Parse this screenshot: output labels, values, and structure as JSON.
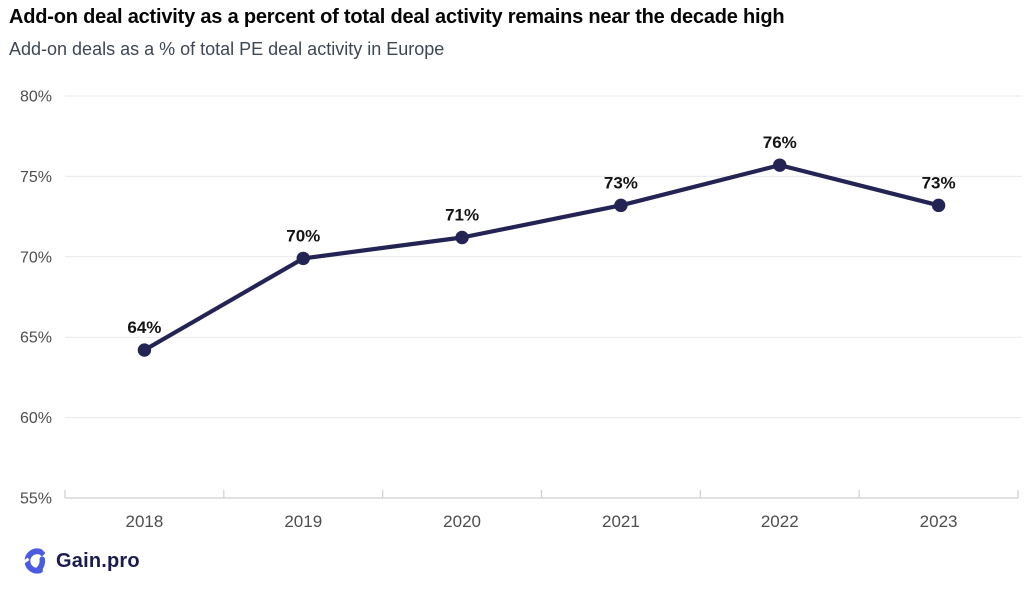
{
  "chart_data": {
    "type": "line",
    "title": "Add-on deal activity as a percent of total deal activity remains near the decade high",
    "subtitle": "Add-on deals as a % of total PE deal activity in Europe",
    "categories": [
      "2018",
      "2019",
      "2020",
      "2021",
      "2022",
      "2023"
    ],
    "values": [
      64.2,
      69.9,
      71.2,
      73.2,
      75.7,
      73.2
    ],
    "point_labels": [
      "64%",
      "70%",
      "71%",
      "73%",
      "76%",
      "73%"
    ],
    "xlabel": "",
    "ylabel": "",
    "ylim": [
      55,
      80
    ],
    "yticks": [
      {
        "value": 80,
        "label": "80%"
      },
      {
        "value": 75,
        "label": "75%"
      },
      {
        "value": 70,
        "label": "70%"
      },
      {
        "value": 65,
        "label": "65%"
      },
      {
        "value": 60,
        "label": "60%"
      },
      {
        "value": 55,
        "label": "55%"
      }
    ],
    "grid": true,
    "legend": false,
    "line_color": "#232453",
    "point_color": "#232453",
    "point_label_color": "#141414",
    "axis_label_color": "#4e4e4e",
    "gridline_color": "#e9e9e9",
    "axis_line_color": "#cfcfcf"
  },
  "footer": {
    "logo_text": "Gain.pro",
    "logo_blue": "#4a5be0",
    "logo_text_color": "#1a1c4e"
  }
}
